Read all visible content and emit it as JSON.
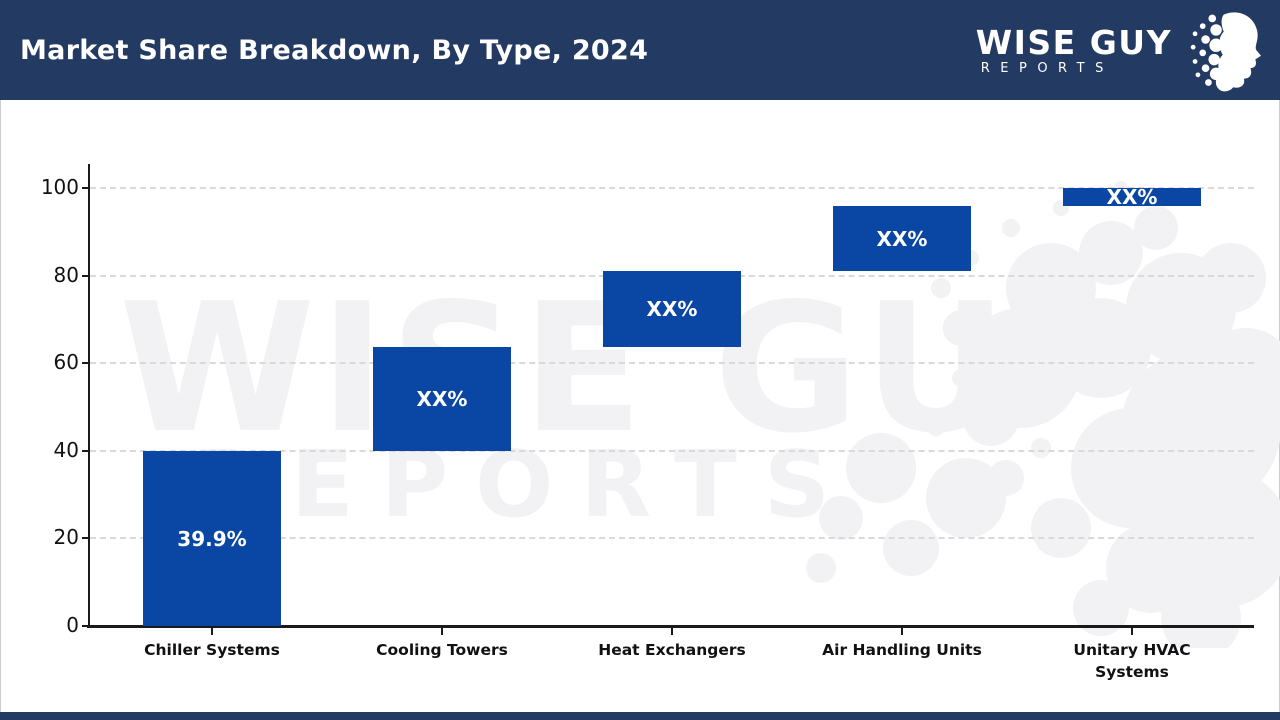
{
  "header": {
    "title": "Market Share Breakdown, By Type, 2024"
  },
  "logo": {
    "name_line": "WISE GUY",
    "sub_line": "REPORTS"
  },
  "watermark": {
    "line1": "WISE GU",
    "line2": "REPORTS"
  },
  "colors": {
    "header_bg": "#233a63",
    "footer_bg": "#233a63",
    "bar_fill": "#0a46a3",
    "bar_label": "#ffffff",
    "axis": "#1a1a1a",
    "tick_label": "#111111",
    "gridline": "#d9d9d9",
    "watermark": "#f2f2f4",
    "page_border": "#cccccc"
  },
  "chart_data": {
    "type": "bar",
    "subtype": "waterfall",
    "title": "Market Share Breakdown, By Type, 2024",
    "categories": [
      "Chiller Systems",
      "Cooling Towers",
      "Heat Exchangers",
      "Air Handling Units",
      "Unitary HVAC Systems"
    ],
    "category_label_lines": [
      [
        "Chiller Systems"
      ],
      [
        "Cooling Towers"
      ],
      [
        "Heat Exchangers"
      ],
      [
        "Air Handling Units"
      ],
      [
        "Unitary HVAC",
        "Systems"
      ]
    ],
    "segments": [
      {
        "category": "Chiller Systems",
        "start": 0,
        "end": 39.9,
        "label": "39.9%"
      },
      {
        "category": "Cooling Towers",
        "start": 39.9,
        "end": 63.8,
        "label": "XX%"
      },
      {
        "category": "Heat Exchangers",
        "start": 63.8,
        "end": 81.0,
        "label": "XX%"
      },
      {
        "category": "Air Handling Units",
        "start": 81.0,
        "end": 95.9,
        "label": "XX%"
      },
      {
        "category": "Unitary HVAC Systems",
        "start": 95.9,
        "end": 100,
        "label": "XX%"
      }
    ],
    "xlabel": "",
    "ylabel": "",
    "y_ticks": [
      0,
      20,
      40,
      60,
      80,
      100
    ],
    "ylim": [
      0,
      105.5
    ],
    "grid": "horizontal-dashed",
    "legend": "none"
  }
}
